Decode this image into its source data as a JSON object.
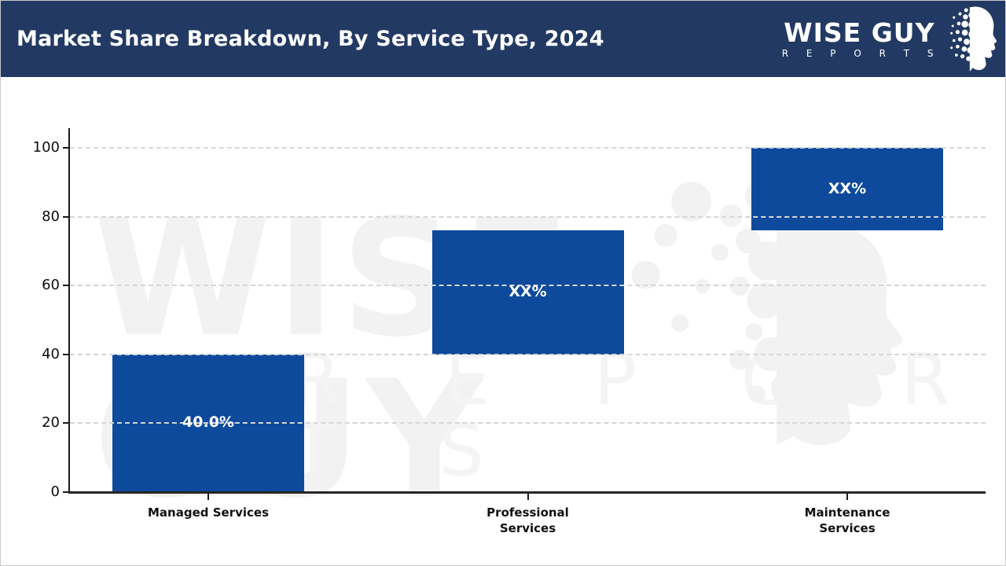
{
  "header": {
    "title": "Market Share Breakdown, By Service Type, 2024",
    "background_color": "#223a63",
    "logo": {
      "line1": "WISE GUY",
      "line2": "R E P O R T S"
    }
  },
  "watermark": {
    "big_text": "WISE GUY",
    "small_text": "R E P O R T S"
  },
  "chart_data": {
    "type": "bar",
    "subtype": "waterfall",
    "title": "Market Share Breakdown, By Service Type, 2024",
    "categories": [
      "Managed Services",
      "Professional Services",
      "Maintenance Services"
    ],
    "category_label_lines": [
      [
        "Managed Services"
      ],
      [
        "Professional",
        "Services"
      ],
      [
        "Maintenance",
        "Services"
      ]
    ],
    "segments": [
      {
        "category": "Managed Services",
        "start": 0,
        "end": 40,
        "label": "40.0%"
      },
      {
        "category": "Professional Services",
        "start": 40,
        "end": 76,
        "label": "XX%"
      },
      {
        "category": "Maintenance Services",
        "start": 76,
        "end": 100,
        "label": "XX%"
      }
    ],
    "yticks": [
      0,
      20,
      40,
      60,
      80,
      100
    ],
    "ylim": [
      0,
      105
    ],
    "xlabel": "",
    "ylabel": "",
    "legend": "none",
    "grid": "horizontal-dashed",
    "bar_color": "#0d4a9c",
    "bar_label_color": "#ffffff",
    "grid_color": "#d6d6d6",
    "axis_color": "#1a1a1a"
  }
}
